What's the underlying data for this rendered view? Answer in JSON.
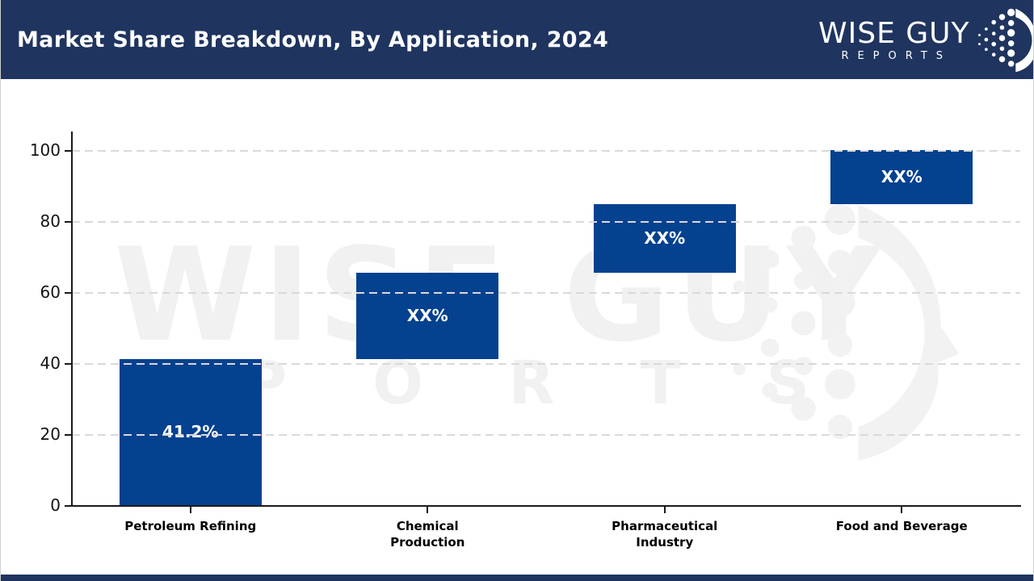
{
  "header": {
    "title": "Market Share Breakdown, By Application, 2024",
    "logo": {
      "line1": "WISE GUY",
      "line2": "REPORTS"
    }
  },
  "watermark": {
    "line1": "WISE GUY",
    "line2": "P O R T S"
  },
  "chart_data": {
    "type": "bar",
    "subtype": "floating-waterfall",
    "title": "Market Share Breakdown, By Application, 2024",
    "xlabel": "",
    "ylabel": "",
    "ylim": [
      0,
      100
    ],
    "yticks": [
      0,
      20,
      40,
      60,
      80,
      100
    ],
    "grid": "horizontal-dashed, drawn above bars",
    "legend": "none",
    "bar_color": "#04418f",
    "value_label_color": "#ffffff",
    "bars": [
      {
        "category": "Petroleum Refining",
        "category_lines": [
          "Petroleum Refining"
        ],
        "start": 0,
        "end": 41.2,
        "label": "41.2%"
      },
      {
        "category": "Chemical Production",
        "category_lines": [
          "Chemical",
          "Production"
        ],
        "start": 41.2,
        "end": 65.5,
        "label": "XX%"
      },
      {
        "category": "Pharmaceutical Industry",
        "category_lines": [
          "Pharmaceutical",
          "Industry"
        ],
        "start": 65.5,
        "end": 84.8,
        "label": "XX%"
      },
      {
        "category": "Food and Beverage",
        "category_lines": [
          "Food and Beverage"
        ],
        "start": 84.8,
        "end": 100,
        "label": "XX%"
      }
    ]
  },
  "colors": {
    "header_navy": "#1f345f",
    "bar_blue": "#04418f",
    "watermark_gray": "#f1f1f1",
    "gridline_gray": "#d9d9d9",
    "axis_black": "#1a1a1a",
    "background": "#ffffff"
  }
}
